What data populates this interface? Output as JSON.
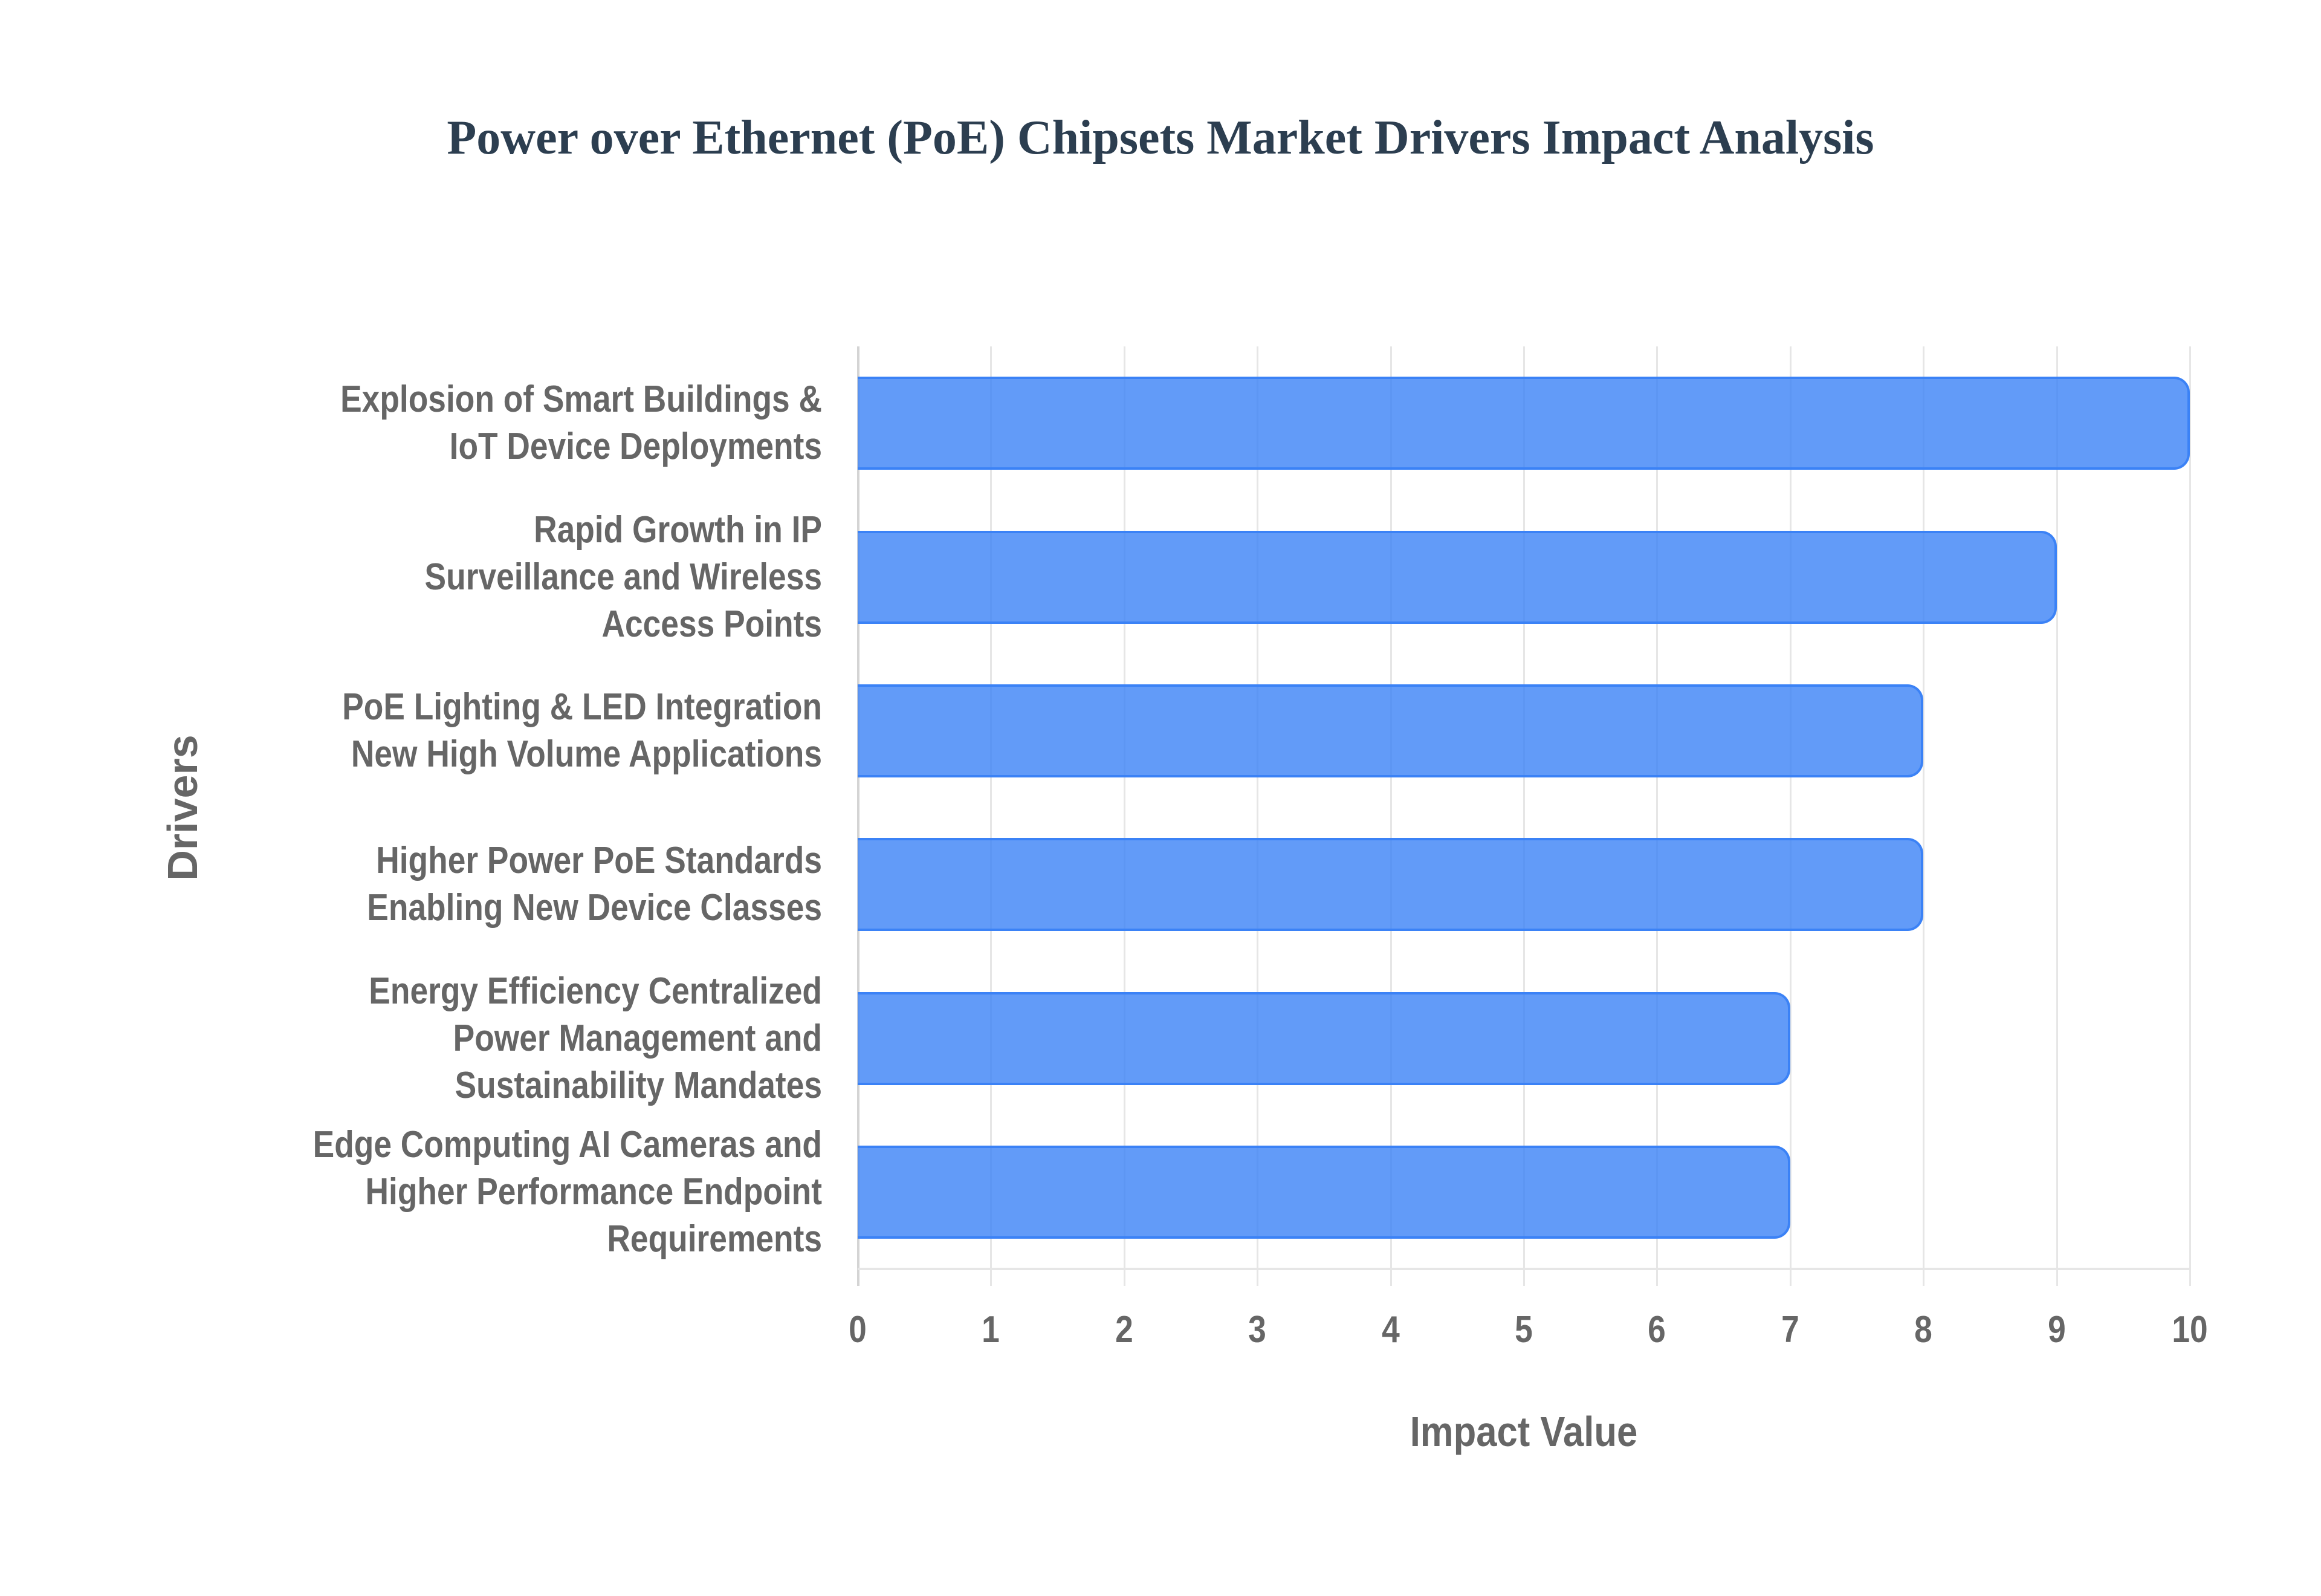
{
  "title": "Power over Ethernet (PoE) Chipsets Market Drivers Impact Analysis",
  "axes": {
    "x_title": "Impact Value",
    "y_title": "Drivers",
    "x_ticks": [
      "0",
      "1",
      "2",
      "3",
      "4",
      "5",
      "6",
      "7",
      "8",
      "9",
      "10"
    ]
  },
  "colors": {
    "bar_fill": "#6399f5",
    "bar_border": "#3b82f6",
    "title": "#2c3e50",
    "label": "#666666",
    "grid": "#e6e6e6"
  },
  "bars": [
    {
      "label": "Explosion of Smart Buildings &\nIoT Device Deployments",
      "value": 10
    },
    {
      "label": "Rapid Growth in IP\nSurveillance and Wireless\nAccess Points",
      "value": 9
    },
    {
      "label": "PoE Lighting & LED Integration\nNew High Volume Applications",
      "value": 8
    },
    {
      "label": "Higher Power PoE Standards\nEnabling New Device Classes",
      "value": 8
    },
    {
      "label": "Energy Efficiency Centralized\nPower Management and\nSustainability Mandates",
      "value": 7
    },
    {
      "label": "Edge Computing AI Cameras and\nHigher Performance Endpoint\nRequirements",
      "value": 7
    }
  ],
  "chart_data": {
    "type": "bar",
    "orientation": "horizontal",
    "title": "Power over Ethernet (PoE) Chipsets Market Drivers Impact Analysis",
    "xlabel": "Impact Value",
    "ylabel": "Drivers",
    "xlim": [
      0,
      10
    ],
    "x_ticks": [
      0,
      1,
      2,
      3,
      4,
      5,
      6,
      7,
      8,
      9,
      10
    ],
    "grid": true,
    "legend": null,
    "categories": [
      "Explosion of Smart Buildings & IoT Device Deployments",
      "Rapid Growth in IP Surveillance and Wireless Access Points",
      "PoE Lighting & LED Integration New High Volume Applications",
      "Higher Power PoE Standards Enabling New Device Classes",
      "Energy Efficiency Centralized Power Management and Sustainability Mandates",
      "Edge Computing AI Cameras and Higher Performance Endpoint Requirements"
    ],
    "values": [
      10,
      9,
      8,
      8,
      7,
      7
    ]
  }
}
